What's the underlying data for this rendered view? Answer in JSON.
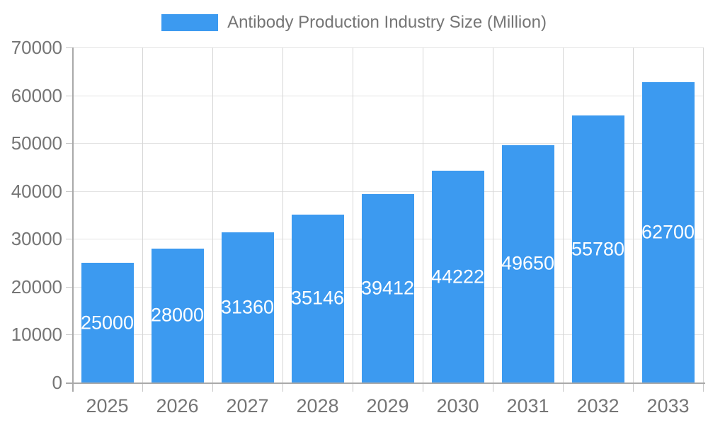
{
  "legend": {
    "label": "Antibody Production Industry Size (Million)"
  },
  "chart_data": {
    "type": "bar",
    "title": "Antibody Production Industry Size (Million)",
    "categories": [
      "2025",
      "2026",
      "2027",
      "2028",
      "2029",
      "2030",
      "2031",
      "2032",
      "2033"
    ],
    "values": [
      25000,
      28000,
      31360,
      35146,
      39412,
      44222,
      49650,
      55780,
      62700
    ],
    "series": [
      {
        "name": "Antibody Production Industry Size (Million)",
        "values": [
          25000,
          28000,
          31360,
          35146,
          39412,
          44222,
          49650,
          55780,
          62700
        ]
      }
    ],
    "xlabel": "",
    "ylabel": "",
    "ylim": [
      0,
      70000
    ],
    "ytick_step": 10000,
    "ytick_labels": [
      "0",
      "10000",
      "20000",
      "30000",
      "40000",
      "50000",
      "60000",
      "70000"
    ],
    "grid": true,
    "legend_position": "top",
    "value_labels_shown": true,
    "colors": {
      "bar": "#3c9af0",
      "value_label": "#ffffff",
      "axis_text": "#757575",
      "legend_text": "#757575",
      "gridline_h": "#e3e3e3",
      "gridline_v": "#d6d6d6",
      "axis_line": "#a9a9a9",
      "tick": "#c8c8c8",
      "background": "#ffffff"
    }
  }
}
